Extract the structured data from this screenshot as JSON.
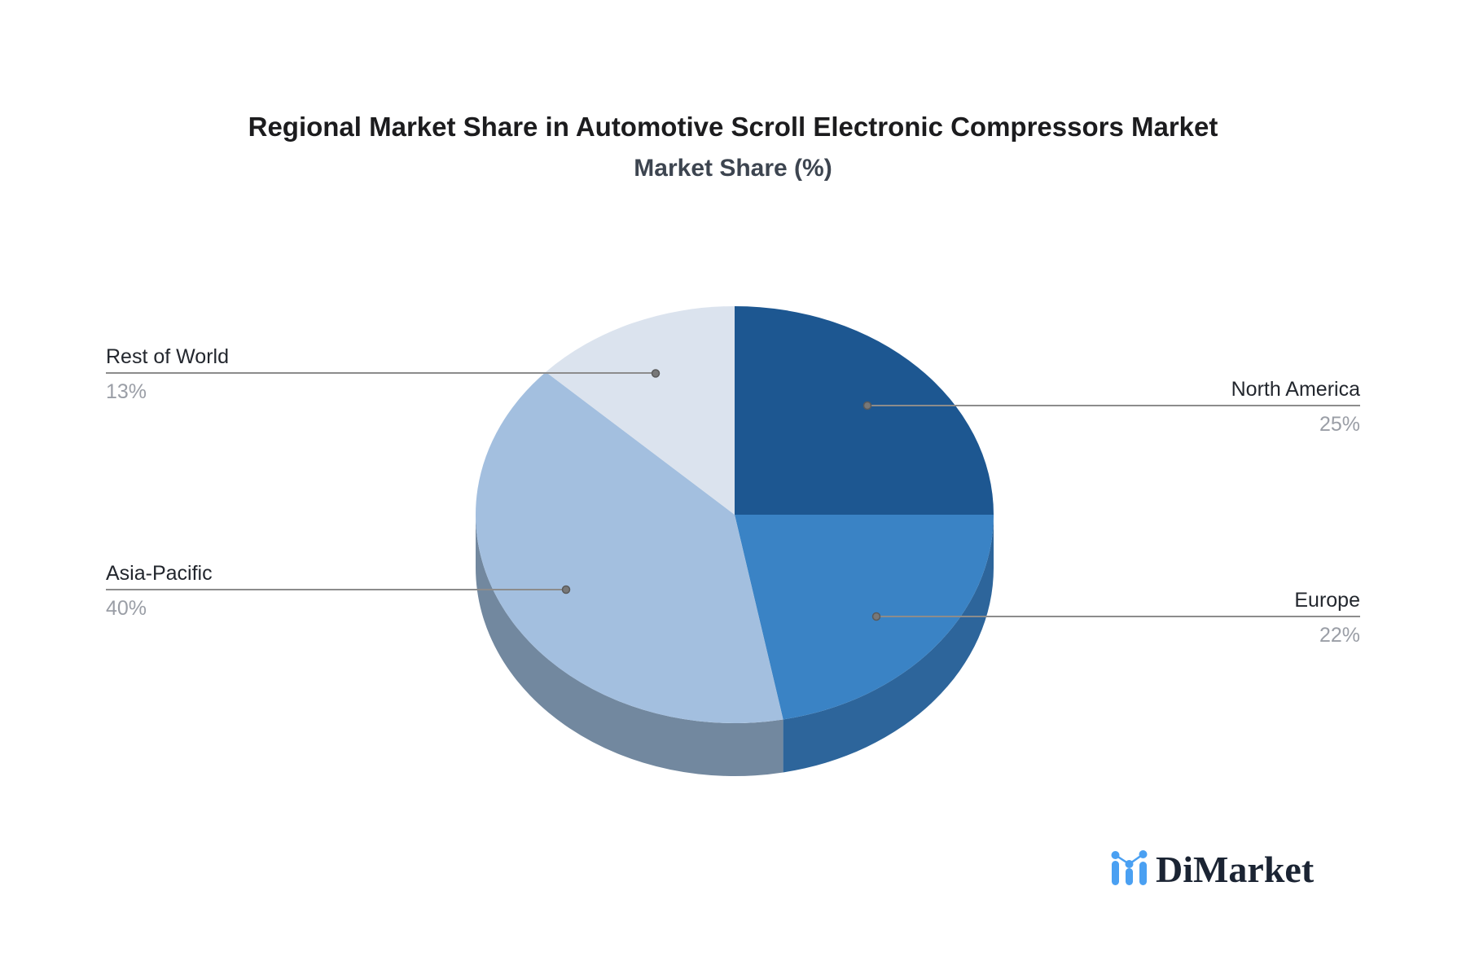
{
  "header": {
    "title": "Regional Market Share in Automotive Scroll Electronic Compressors Market",
    "subtitle": "Market Share (%)"
  },
  "chart_data": {
    "type": "pie",
    "title": "Regional Market Share in Automotive Scroll Electronic Compressors Market",
    "subtitle": "Market Share (%)",
    "unit": "%",
    "style": "3d",
    "start_angle_deg": -90,
    "direction": "clockwise",
    "legend_position": "callout-labels",
    "slices": [
      {
        "label": "North America",
        "value": 25,
        "display": "25%",
        "color": "#1d5791",
        "side_color": "#275f96"
      },
      {
        "label": "Europe",
        "value": 22,
        "display": "22%",
        "color": "#3a83c5",
        "side_color": "#2d659b"
      },
      {
        "label": "Asia-Pacific",
        "value": 40,
        "display": "40%",
        "color": "#a3bfdf",
        "side_color": "#72889f"
      },
      {
        "label": "Rest of World",
        "value": 13,
        "display": "13%",
        "color": "#dbe3ee",
        "side_color": "#aab6c8"
      }
    ]
  },
  "branding": {
    "logo_text": "DiMarket",
    "logo_text_color": "#1b2433",
    "logo_accent": "#4aa0f2"
  }
}
